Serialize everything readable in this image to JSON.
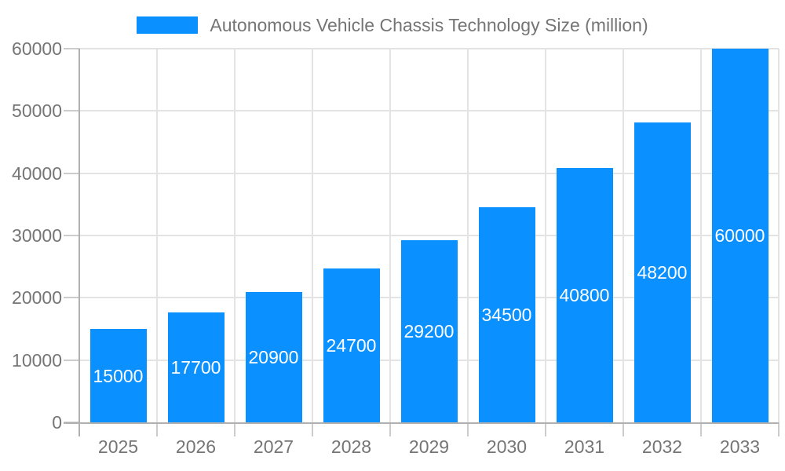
{
  "chart_data": {
    "type": "bar",
    "title": "Autonomous Vehicle Chassis Technology Size (million)",
    "legend": [
      "Autonomous Vehicle Chassis Technology Size (million)"
    ],
    "legend_position": "top-center",
    "categories": [
      "2025",
      "2026",
      "2027",
      "2028",
      "2029",
      "2030",
      "2031",
      "2032",
      "2033"
    ],
    "values": [
      15000,
      17700,
      20900,
      24700,
      29200,
      34500,
      40800,
      48200,
      60000
    ],
    "value_labels": [
      "15000",
      "17700",
      "20900",
      "24700",
      "29200",
      "34500",
      "40800",
      "48200",
      "60000"
    ],
    "xlabel": "",
    "ylabel": "",
    "ylim": [
      0,
      60000
    ],
    "ytick_step": 10000,
    "ytick_labels": [
      "0",
      "10000",
      "20000",
      "30000",
      "40000",
      "50000",
      "60000"
    ],
    "grid": true,
    "colors": {
      "bar": "#0a90ff",
      "value_label": "#ffffff",
      "axis_text": "#757575",
      "axis_line": "#b0b0b0",
      "tick_line": "#cccccc",
      "grid_line": "#e3e3e3",
      "background": "#ffffff"
    }
  }
}
